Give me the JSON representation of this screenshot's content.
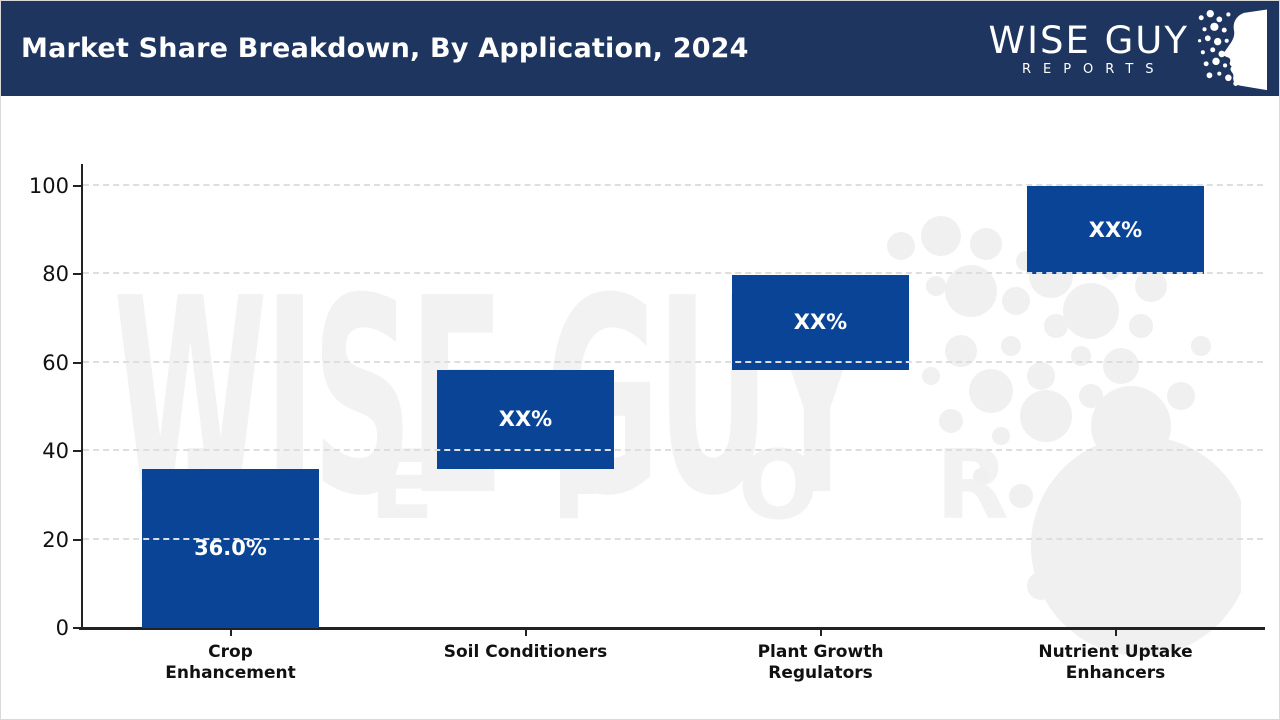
{
  "header": {
    "title": "Market Share Breakdown, By Application, 2024",
    "bg_color": "#1e3560",
    "logo": {
      "line1": "WISE GUY",
      "line2": "REPORTS"
    }
  },
  "watermark": {
    "line1": "WISE GUY",
    "line2": "R E P O R T S"
  },
  "chart_data": {
    "type": "bar",
    "subtype": "waterfall",
    "title": "Market Share Breakdown, By Application, 2024",
    "categories": [
      "Crop Enhancement",
      "Soil Conditioners",
      "Plant Growth Regulators",
      "Nutrient Uptake Enhancers"
    ],
    "bars": [
      {
        "category": "Crop Enhancement",
        "start": 0,
        "end": 36,
        "label": "36.0%"
      },
      {
        "category": "Soil Conditioners",
        "start": 36,
        "end": 58.5,
        "label": "XX%"
      },
      {
        "category": "Plant Growth Regulators",
        "start": 58.5,
        "end": 80,
        "label": "XX%"
      },
      {
        "category": "Nutrient Uptake Enhancers",
        "start": 80,
        "end": 100,
        "label": "XX%"
      }
    ],
    "ylim": [
      0,
      105
    ],
    "yticks": [
      0,
      20,
      40,
      60,
      80,
      100
    ],
    "xlabel": "",
    "ylabel": "",
    "grid": "horizontal-dashed",
    "legend": "none",
    "bar_color": "#0a4496",
    "bar_label_color": "#ffffff",
    "axis_color": "#222222"
  }
}
